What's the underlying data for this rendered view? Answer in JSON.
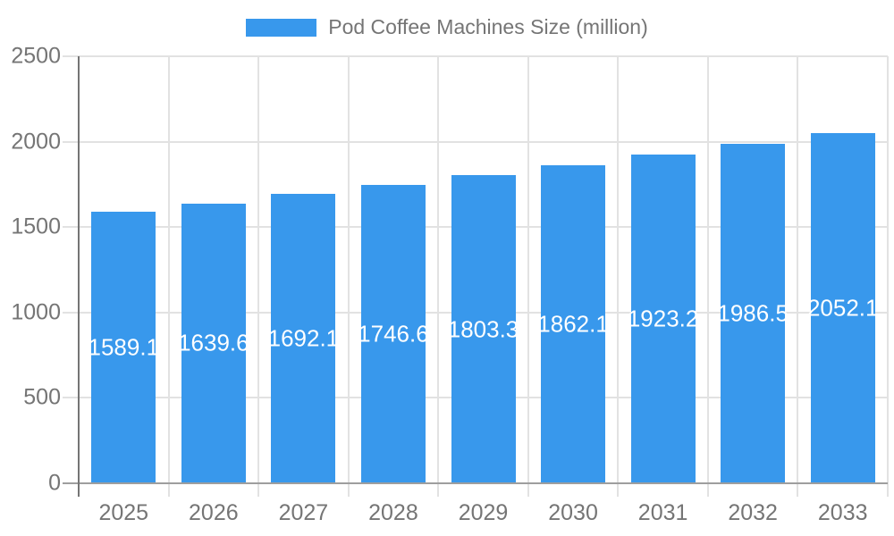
{
  "chart_data": {
    "type": "bar",
    "title": "",
    "xlabel": "",
    "ylabel": "",
    "legend": {
      "label": "Pod Coffee Machines Size (million)",
      "position": "top-center"
    },
    "categories": [
      "2025",
      "2026",
      "2027",
      "2028",
      "2029",
      "2030",
      "2031",
      "2032",
      "2033"
    ],
    "series": [
      {
        "name": "Pod Coffee Machines Size (million)",
        "values": [
          1589.1,
          1639.6,
          1692.1,
          1746.6,
          1803.3,
          1862.1,
          1923.2,
          1986.5,
          2052.1
        ]
      }
    ],
    "value_labels_shown": true,
    "value_label_decimals": 1,
    "ylim": [
      0,
      2500
    ],
    "ytick_step": 500,
    "yticks": [
      "0",
      "500",
      "1000",
      "1500",
      "2000",
      "2500"
    ],
    "grid": true,
    "colors": {
      "bar": "#3898ec",
      "value_label": "#ffffff",
      "axis_text": "#757575",
      "legend_text": "#757575",
      "gridline": "#e2e2e2",
      "zero_line": "#9e9e9e",
      "y_axis_line": "#757575",
      "background": "#ffffff"
    }
  }
}
